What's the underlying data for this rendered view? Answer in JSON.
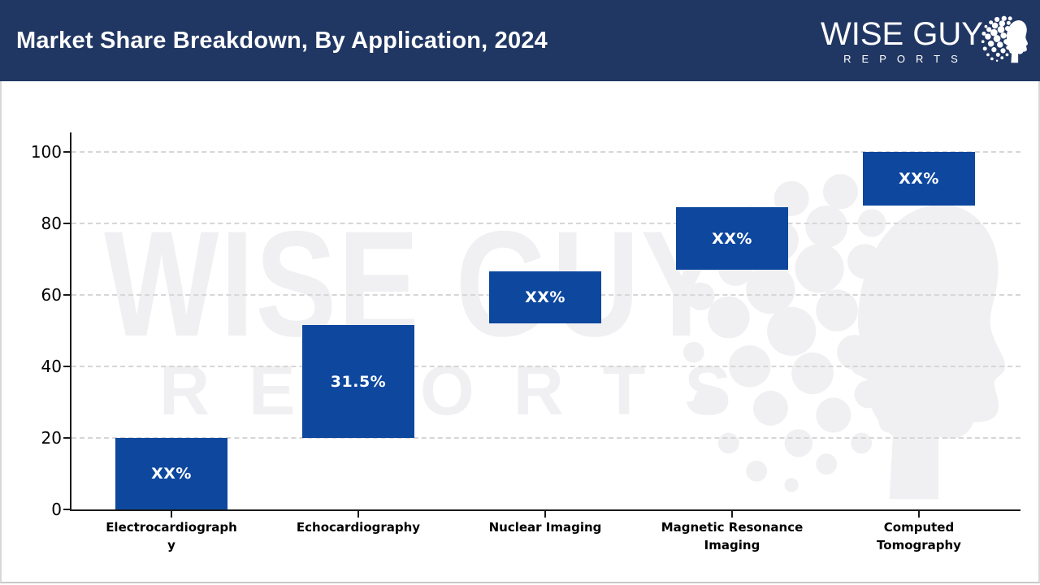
{
  "header": {
    "title": "Market Share Breakdown, By Application, 2024",
    "logo": {
      "name": "WISE GUY",
      "subtitle": "REPORTS"
    }
  },
  "watermark": {
    "line1": "WISE GUY",
    "line2": "REPORTS"
  },
  "chart_data": {
    "type": "bar",
    "subtype": "floating-segment-waterfall",
    "title": "Market Share Breakdown, By Application, 2024",
    "categories": [
      "Electrocardiography",
      "Echocardiography",
      "Nuclear Imaging",
      "Magnetic Resonance Imaging",
      "Computed Tomography"
    ],
    "category_display": [
      "Electrocardiograph\ny",
      "Echocardiography",
      "Nuclear Imaging",
      "Magnetic Resonance\nImaging",
      "Computed\nTomography"
    ],
    "segments": [
      {
        "category": "Electrocardiography",
        "from": 0,
        "to": 20,
        "label": "XX%"
      },
      {
        "category": "Echocardiography",
        "from": 20,
        "to": 51.5,
        "label": "31.5%",
        "value": 31.5
      },
      {
        "category": "Nuclear Imaging",
        "from": 52,
        "to": 66.5,
        "label": "XX%"
      },
      {
        "category": "Magnetic Resonance Imaging",
        "from": 67,
        "to": 84.5,
        "label": "XX%"
      },
      {
        "category": "Computed Tomography",
        "from": 85,
        "to": 100,
        "label": "XX%"
      }
    ],
    "ylim": [
      0,
      100
    ],
    "yticks": [
      0,
      20,
      40,
      60,
      80,
      100
    ],
    "xlabel": "",
    "ylabel": "",
    "grid": "horizontal-dashed",
    "legend": null,
    "bar_color": "#0d479e"
  },
  "colors": {
    "header_bg": "#213763",
    "bar": "#0d479e",
    "grid": "#d6d6d6",
    "axis": "#1a1a1a",
    "watermark": "#f0f0f2",
    "label_on_bar": "#ffffff"
  }
}
